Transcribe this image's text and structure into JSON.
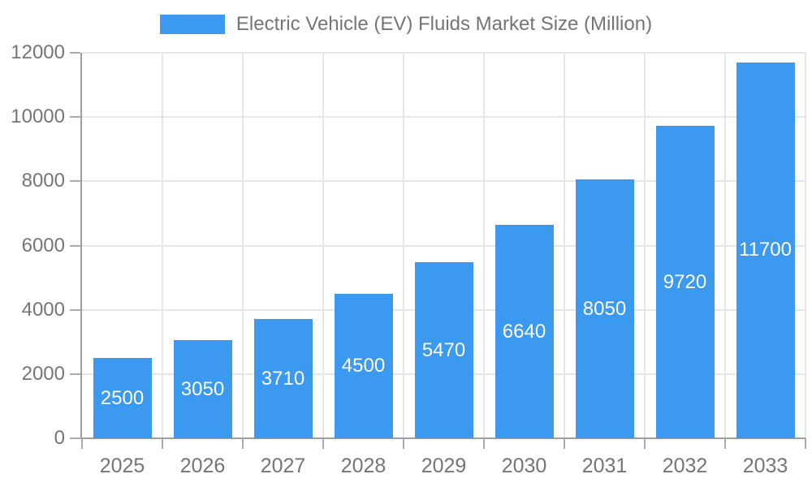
{
  "chart_data": {
    "type": "bar",
    "title": "Electric Vehicle (EV) Fluids Market Size (Million)",
    "categories": [
      "2025",
      "2026",
      "2027",
      "2028",
      "2029",
      "2030",
      "2031",
      "2032",
      "2033"
    ],
    "values": [
      2500,
      3050,
      3710,
      4500,
      5470,
      6640,
      8050,
      9720,
      11700
    ],
    "xlabel": "",
    "ylabel": "",
    "ylim": [
      0,
      12000
    ],
    "yticks": [
      0,
      2000,
      4000,
      6000,
      8000,
      10000,
      12000
    ],
    "grid": true,
    "legend_position": "top-center",
    "value_label_position": "inside-center"
  },
  "colors": {
    "bar": "#3b99f0",
    "grid": "#e6e6e6",
    "axis": "#9e9e9e",
    "tick": "#aaaaaa",
    "text": "#757575",
    "value_label": "#ffffff",
    "background": "#ffffff"
  }
}
